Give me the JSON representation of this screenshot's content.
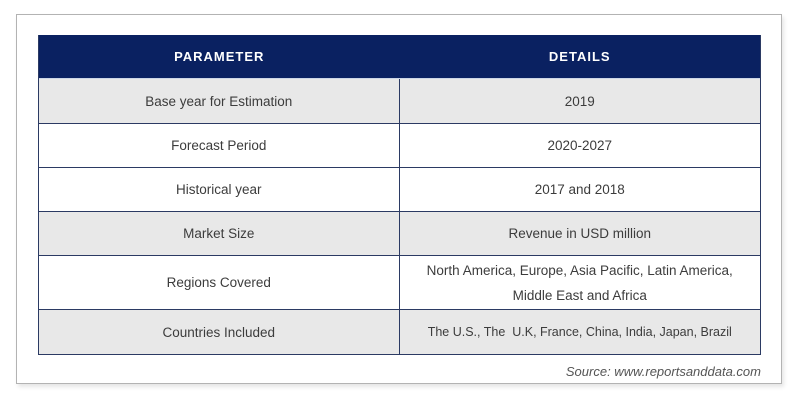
{
  "table": {
    "headers": {
      "parameter": "PARAMETER",
      "details": "DETAILS"
    },
    "rows": [
      {
        "parameter": "Base year for Estimation",
        "details": "2019",
        "shaded": true
      },
      {
        "parameter": "Forecast Period",
        "details": "2020-2027",
        "shaded": false
      },
      {
        "parameter": "Historical year",
        "details": "2017 and 2018",
        "shaded": false
      },
      {
        "parameter": "Market Size",
        "details": "Revenue in USD million",
        "shaded": true
      },
      {
        "parameter": "Regions Covered",
        "details": "North America, Europe, Asia Pacific, Latin America,\nMiddle East and Africa",
        "shaded": false
      },
      {
        "parameter": "Countries Included",
        "details": "The U.S., The  U.K, France, China, India, Japan, Brazil",
        "shaded": true
      }
    ]
  },
  "source": {
    "label": "Source: www.reportsanddata.com"
  },
  "colors": {
    "header_bg": "#0a2161",
    "header_text": "#ffffff",
    "header_divider": "#ccd6e6",
    "row_shaded_bg": "#e8e8e8",
    "row_white_bg": "#ffffff",
    "border": "#2b3a63",
    "cell_text": "#3c3c3c",
    "source_text": "#555555",
    "card_border": "#b3b3b3"
  }
}
